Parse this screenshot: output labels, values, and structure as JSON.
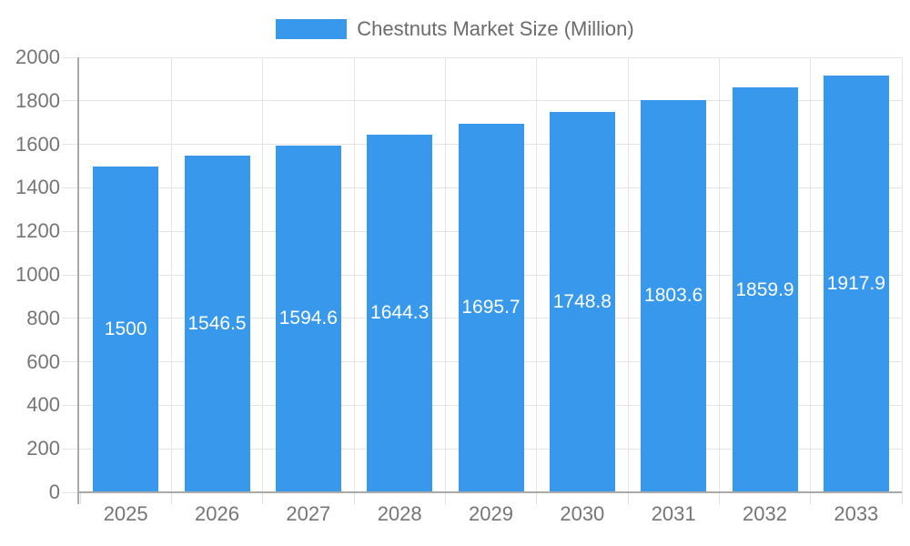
{
  "chart_data": {
    "type": "bar",
    "title": "Chestnuts Market Size (Million)",
    "legend_position": "top-center",
    "categories": [
      "2025",
      "2026",
      "2027",
      "2028",
      "2029",
      "2030",
      "2031",
      "2032",
      "2033"
    ],
    "series": [
      {
        "name": "Chestnuts Market Size (Million)",
        "values": [
          1500,
          1546.5,
          1594.6,
          1644.3,
          1695.7,
          1748.8,
          1803.6,
          1859.9,
          1917.9
        ]
      }
    ],
    "bar_value_labels": [
      "1500",
      "1546.5",
      "1594.6",
      "1644.3",
      "1695.7",
      "1748.8",
      "1803.6",
      "1859.9",
      "1917.9"
    ],
    "xlabel": "",
    "ylabel": "",
    "ylim": [
      0,
      2000
    ],
    "ytick_step": 200,
    "yticks": [
      "0",
      "200",
      "400",
      "600",
      "800",
      "1000",
      "1200",
      "1400",
      "1600",
      "1800",
      "2000"
    ],
    "grid": {
      "horizontal": true,
      "vertical_category_boundaries": true
    },
    "colors": {
      "bar": "#3899EC",
      "bar_label": "#FFFFFF",
      "axis_line": "#A9A9A9",
      "grid_line": "#E4E4E4",
      "tick_line": "#DEDEDE",
      "axis_text": "#757575",
      "legend_text": "#6B6B6B",
      "background": "#FFFFFF"
    }
  }
}
